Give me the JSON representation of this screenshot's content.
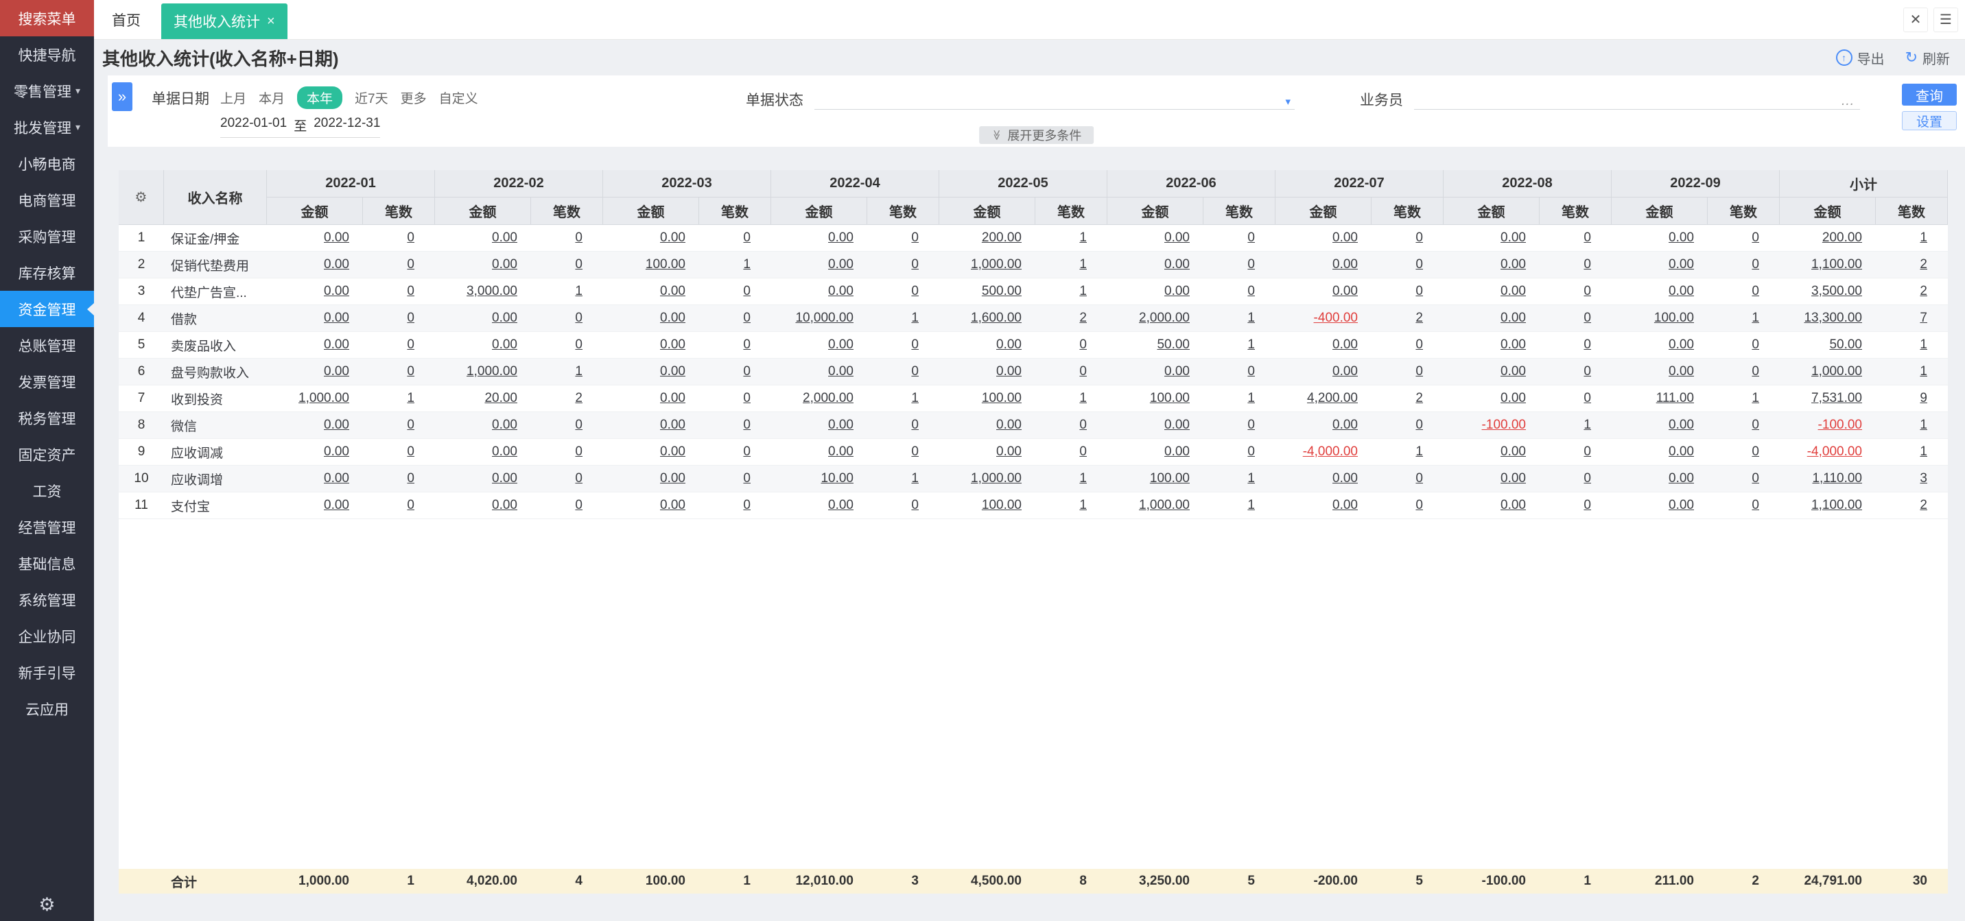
{
  "icons": {
    "gear": "⚙",
    "caret_down": "▾",
    "window_close": "✕",
    "window_menu": "☰",
    "tab_close": "×",
    "collapse": "»",
    "expand_double_chevron": "≫",
    "export_arrow": "↑",
    "refresh": "↻",
    "select_chevron": "▾",
    "ellipsis": "…",
    "bottom_gear": "⚙"
  },
  "sidebar": {
    "search_label": "搜索菜单",
    "items": [
      {
        "label": "快捷导航"
      },
      {
        "label": "零售管理",
        "caret": true
      },
      {
        "label": "批发管理",
        "caret": true
      },
      {
        "label": "小畅电商"
      },
      {
        "label": "电商管理"
      },
      {
        "label": "采购管理"
      },
      {
        "label": "库存核算"
      },
      {
        "label": "资金管理",
        "active": true
      },
      {
        "label": "总账管理"
      },
      {
        "label": "发票管理"
      },
      {
        "label": "税务管理"
      },
      {
        "label": "固定资产"
      },
      {
        "label": "工资"
      },
      {
        "label": "经营管理"
      },
      {
        "label": "基础信息"
      },
      {
        "label": "系统管理"
      },
      {
        "label": "企业协同"
      },
      {
        "label": "新手引导"
      },
      {
        "label": "云应用"
      }
    ]
  },
  "tabs": {
    "home": "首页",
    "active": "其他收入统计"
  },
  "page": {
    "title": "其他收入统计(收入名称+日期)",
    "export": "导出",
    "refresh": "刷新"
  },
  "filters": {
    "date_label": "单据日期",
    "quick": [
      "上月",
      "本月",
      "本年",
      "近7天",
      "更多",
      "自定义"
    ],
    "quick_active": "本年",
    "date_from": "2022-01-01",
    "date_sep": "至",
    "date_to": "2022-12-31",
    "status_label": "单据状态",
    "salesman_label": "业务员",
    "search_btn": "查询",
    "settings_btn": "设置",
    "expand_more": "展开更多条件"
  },
  "table": {
    "name_header": "收入名称",
    "months": [
      "2022-01",
      "2022-02",
      "2022-03",
      "2022-04",
      "2022-05",
      "2022-06",
      "2022-07",
      "2022-08",
      "2022-09",
      "小计"
    ],
    "sub_headers": [
      "金额",
      "笔数"
    ],
    "rows": [
      {
        "name": "保证金/押金",
        "cells": [
          [
            "0.00",
            "0"
          ],
          [
            "0.00",
            "0"
          ],
          [
            "0.00",
            "0"
          ],
          [
            "0.00",
            "0"
          ],
          [
            "200.00",
            "1"
          ],
          [
            "0.00",
            "0"
          ],
          [
            "0.00",
            "0"
          ],
          [
            "0.00",
            "0"
          ],
          [
            "0.00",
            "0"
          ],
          [
            "200.00",
            "1"
          ]
        ]
      },
      {
        "name": "促销代垫费用",
        "cells": [
          [
            "0.00",
            "0"
          ],
          [
            "0.00",
            "0"
          ],
          [
            "100.00",
            "1"
          ],
          [
            "0.00",
            "0"
          ],
          [
            "1,000.00",
            "1"
          ],
          [
            "0.00",
            "0"
          ],
          [
            "0.00",
            "0"
          ],
          [
            "0.00",
            "0"
          ],
          [
            "0.00",
            "0"
          ],
          [
            "1,100.00",
            "2"
          ]
        ]
      },
      {
        "name": "代垫广告宣...",
        "cells": [
          [
            "0.00",
            "0"
          ],
          [
            "3,000.00",
            "1"
          ],
          [
            "0.00",
            "0"
          ],
          [
            "0.00",
            "0"
          ],
          [
            "500.00",
            "1"
          ],
          [
            "0.00",
            "0"
          ],
          [
            "0.00",
            "0"
          ],
          [
            "0.00",
            "0"
          ],
          [
            "0.00",
            "0"
          ],
          [
            "3,500.00",
            "2"
          ]
        ]
      },
      {
        "name": "借款",
        "cells": [
          [
            "0.00",
            "0"
          ],
          [
            "0.00",
            "0"
          ],
          [
            "0.00",
            "0"
          ],
          [
            "10,000.00",
            "1"
          ],
          [
            "1,600.00",
            "2"
          ],
          [
            "2,000.00",
            "1"
          ],
          [
            "-400.00",
            "2"
          ],
          [
            "0.00",
            "0"
          ],
          [
            "100.00",
            "1"
          ],
          [
            "13,300.00",
            "7"
          ]
        ]
      },
      {
        "name": "卖废品收入",
        "cells": [
          [
            "0.00",
            "0"
          ],
          [
            "0.00",
            "0"
          ],
          [
            "0.00",
            "0"
          ],
          [
            "0.00",
            "0"
          ],
          [
            "0.00",
            "0"
          ],
          [
            "50.00",
            "1"
          ],
          [
            "0.00",
            "0"
          ],
          [
            "0.00",
            "0"
          ],
          [
            "0.00",
            "0"
          ],
          [
            "50.00",
            "1"
          ]
        ]
      },
      {
        "name": "盘号购款收入",
        "cells": [
          [
            "0.00",
            "0"
          ],
          [
            "1,000.00",
            "1"
          ],
          [
            "0.00",
            "0"
          ],
          [
            "0.00",
            "0"
          ],
          [
            "0.00",
            "0"
          ],
          [
            "0.00",
            "0"
          ],
          [
            "0.00",
            "0"
          ],
          [
            "0.00",
            "0"
          ],
          [
            "0.00",
            "0"
          ],
          [
            "1,000.00",
            "1"
          ]
        ]
      },
      {
        "name": "收到投资",
        "cells": [
          [
            "1,000.00",
            "1"
          ],
          [
            "20.00",
            "2"
          ],
          [
            "0.00",
            "0"
          ],
          [
            "2,000.00",
            "1"
          ],
          [
            "100.00",
            "1"
          ],
          [
            "100.00",
            "1"
          ],
          [
            "4,200.00",
            "2"
          ],
          [
            "0.00",
            "0"
          ],
          [
            "111.00",
            "1"
          ],
          [
            "7,531.00",
            "9"
          ]
        ]
      },
      {
        "name": "微信",
        "cells": [
          [
            "0.00",
            "0"
          ],
          [
            "0.00",
            "0"
          ],
          [
            "0.00",
            "0"
          ],
          [
            "0.00",
            "0"
          ],
          [
            "0.00",
            "0"
          ],
          [
            "0.00",
            "0"
          ],
          [
            "0.00",
            "0"
          ],
          [
            "-100.00",
            "1"
          ],
          [
            "0.00",
            "0"
          ],
          [
            "-100.00",
            "1"
          ]
        ]
      },
      {
        "name": "应收调减",
        "cells": [
          [
            "0.00",
            "0"
          ],
          [
            "0.00",
            "0"
          ],
          [
            "0.00",
            "0"
          ],
          [
            "0.00",
            "0"
          ],
          [
            "0.00",
            "0"
          ],
          [
            "0.00",
            "0"
          ],
          [
            "-4,000.00",
            "1"
          ],
          [
            "0.00",
            "0"
          ],
          [
            "0.00",
            "0"
          ],
          [
            "-4,000.00",
            "1"
          ]
        ]
      },
      {
        "name": "应收调增",
        "cells": [
          [
            "0.00",
            "0"
          ],
          [
            "0.00",
            "0"
          ],
          [
            "0.00",
            "0"
          ],
          [
            "10.00",
            "1"
          ],
          [
            "1,000.00",
            "1"
          ],
          [
            "100.00",
            "1"
          ],
          [
            "0.00",
            "0"
          ],
          [
            "0.00",
            "0"
          ],
          [
            "0.00",
            "0"
          ],
          [
            "1,110.00",
            "3"
          ]
        ]
      },
      {
        "name": "支付宝",
        "cells": [
          [
            "0.00",
            "0"
          ],
          [
            "0.00",
            "0"
          ],
          [
            "0.00",
            "0"
          ],
          [
            "0.00",
            "0"
          ],
          [
            "100.00",
            "1"
          ],
          [
            "1,000.00",
            "1"
          ],
          [
            "0.00",
            "0"
          ],
          [
            "0.00",
            "0"
          ],
          [
            "0.00",
            "0"
          ],
          [
            "1,100.00",
            "2"
          ]
        ]
      }
    ],
    "total_label": "合计",
    "totals": [
      [
        "1,000.00",
        "1"
      ],
      [
        "4,020.00",
        "4"
      ],
      [
        "100.00",
        "1"
      ],
      [
        "12,010.00",
        "3"
      ],
      [
        "4,500.00",
        "8"
      ],
      [
        "3,250.00",
        "5"
      ],
      [
        "-200.00",
        "5"
      ],
      [
        "-100.00",
        "1"
      ],
      [
        "211.00",
        "2"
      ],
      [
        "24,791.00",
        "30"
      ]
    ]
  }
}
